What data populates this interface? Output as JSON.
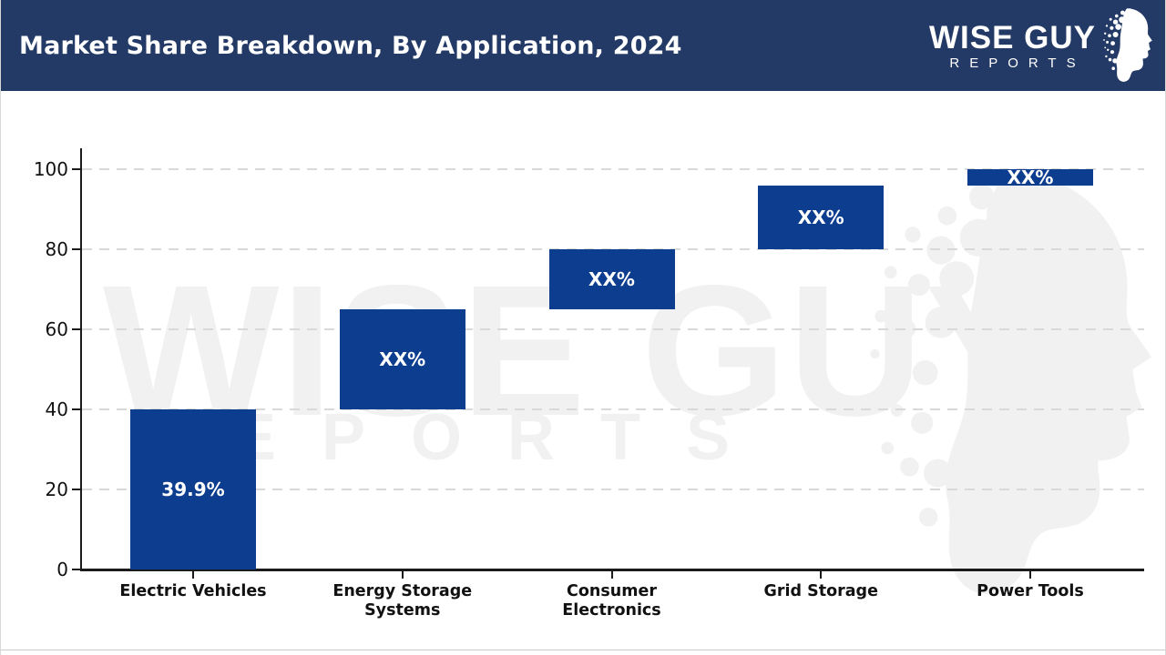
{
  "header": {
    "title": "Market Share Breakdown, By Application, 2024",
    "bg_color": "#243a66",
    "logo": {
      "line1": "WISE GUY",
      "line2": "REPORTS"
    }
  },
  "watermark": {
    "line1": "WISE GUY",
    "line2": "REPORTS"
  },
  "chart_data": {
    "type": "bar",
    "subtype": "waterfall-breakdown",
    "title": "Market Share Breakdown, By Application, 2024",
    "xlabel": "",
    "ylabel": "",
    "categories": [
      "Electric Vehicles",
      "Energy Storage\nSystems",
      "Consumer\nElectronics",
      "Grid Storage",
      "Power Tools"
    ],
    "segments": [
      {
        "category": "Electric Vehicles",
        "start": 0,
        "end": 39.9,
        "label": "39.9%"
      },
      {
        "category": "Energy Storage Systems",
        "start": 40,
        "end": 65,
        "label": "XX%"
      },
      {
        "category": "Consumer Electronics",
        "start": 65,
        "end": 80,
        "label": "XX%"
      },
      {
        "category": "Grid Storage",
        "start": 80,
        "end": 96,
        "label": "XX%"
      },
      {
        "category": "Power Tools",
        "start": 96,
        "end": 100,
        "label": "XX%"
      }
    ],
    "yticks": [
      0,
      20,
      40,
      60,
      80,
      100
    ],
    "ylim": [
      0,
      105
    ],
    "grid": true,
    "gridline_style": "dashed",
    "gridline_color": "#d9d9d9",
    "bar_color": "#0d3d8f",
    "label_color": "#ffffff",
    "legend": "none"
  }
}
